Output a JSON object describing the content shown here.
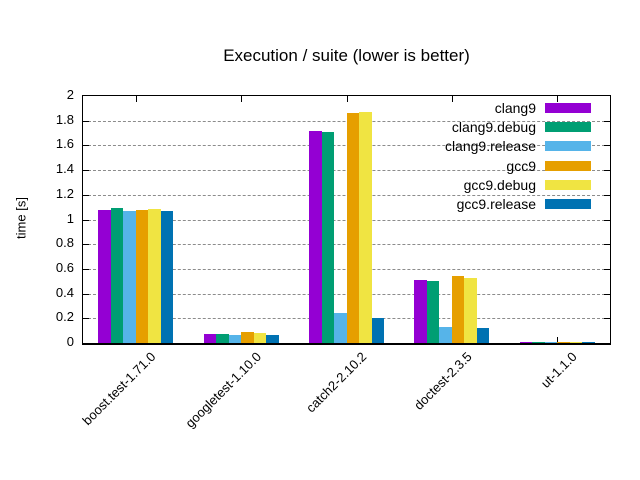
{
  "title": "Execution / suite (lower is better)",
  "colors": {
    "background": "#ffffff",
    "frame": "#000000",
    "grid": "#8c8c8c",
    "text": "#000000"
  },
  "chart_data": {
    "type": "bar",
    "title": "Execution / suite (lower is better)",
    "xlabel": "",
    "ylabel": "time [s]",
    "ylim": [
      0,
      2
    ],
    "ytick_step": 0.2,
    "ytick_labels": [
      "0",
      "0.2",
      "0.4",
      "0.6",
      "0.8",
      "1",
      "1.2",
      "1.4",
      "1.6",
      "1.8",
      "2"
    ],
    "grid": "horizontal-dashed",
    "legend_position": "top-right-inside",
    "categories": [
      "boost.test-1.71.0",
      "googletest-1.10.0",
      "catch2-2.10.2",
      "doctest-2.3.5",
      "ut-1.1.0"
    ],
    "series": [
      {
        "name": "clang9",
        "color": "#9400D3",
        "values": [
          1.075,
          0.075,
          1.72,
          0.51,
          0.01
        ]
      },
      {
        "name": "clang9.debug",
        "color": "#009E73",
        "values": [
          1.095,
          0.07,
          1.71,
          0.5,
          0.01
        ]
      },
      {
        "name": "clang9.release",
        "color": "#56B4E9",
        "values": [
          1.065,
          0.065,
          0.24,
          0.13,
          0.01
        ]
      },
      {
        "name": "gcc9",
        "color": "#E69F00",
        "values": [
          1.075,
          0.09,
          1.86,
          0.54,
          0.01
        ]
      },
      {
        "name": "gcc9.debug",
        "color": "#F0E442",
        "values": [
          1.085,
          0.08,
          1.87,
          0.53,
          0.01
        ]
      },
      {
        "name": "gcc9.release",
        "color": "#0072B2",
        "values": [
          1.065,
          0.065,
          0.2,
          0.12,
          0.01
        ]
      }
    ]
  }
}
